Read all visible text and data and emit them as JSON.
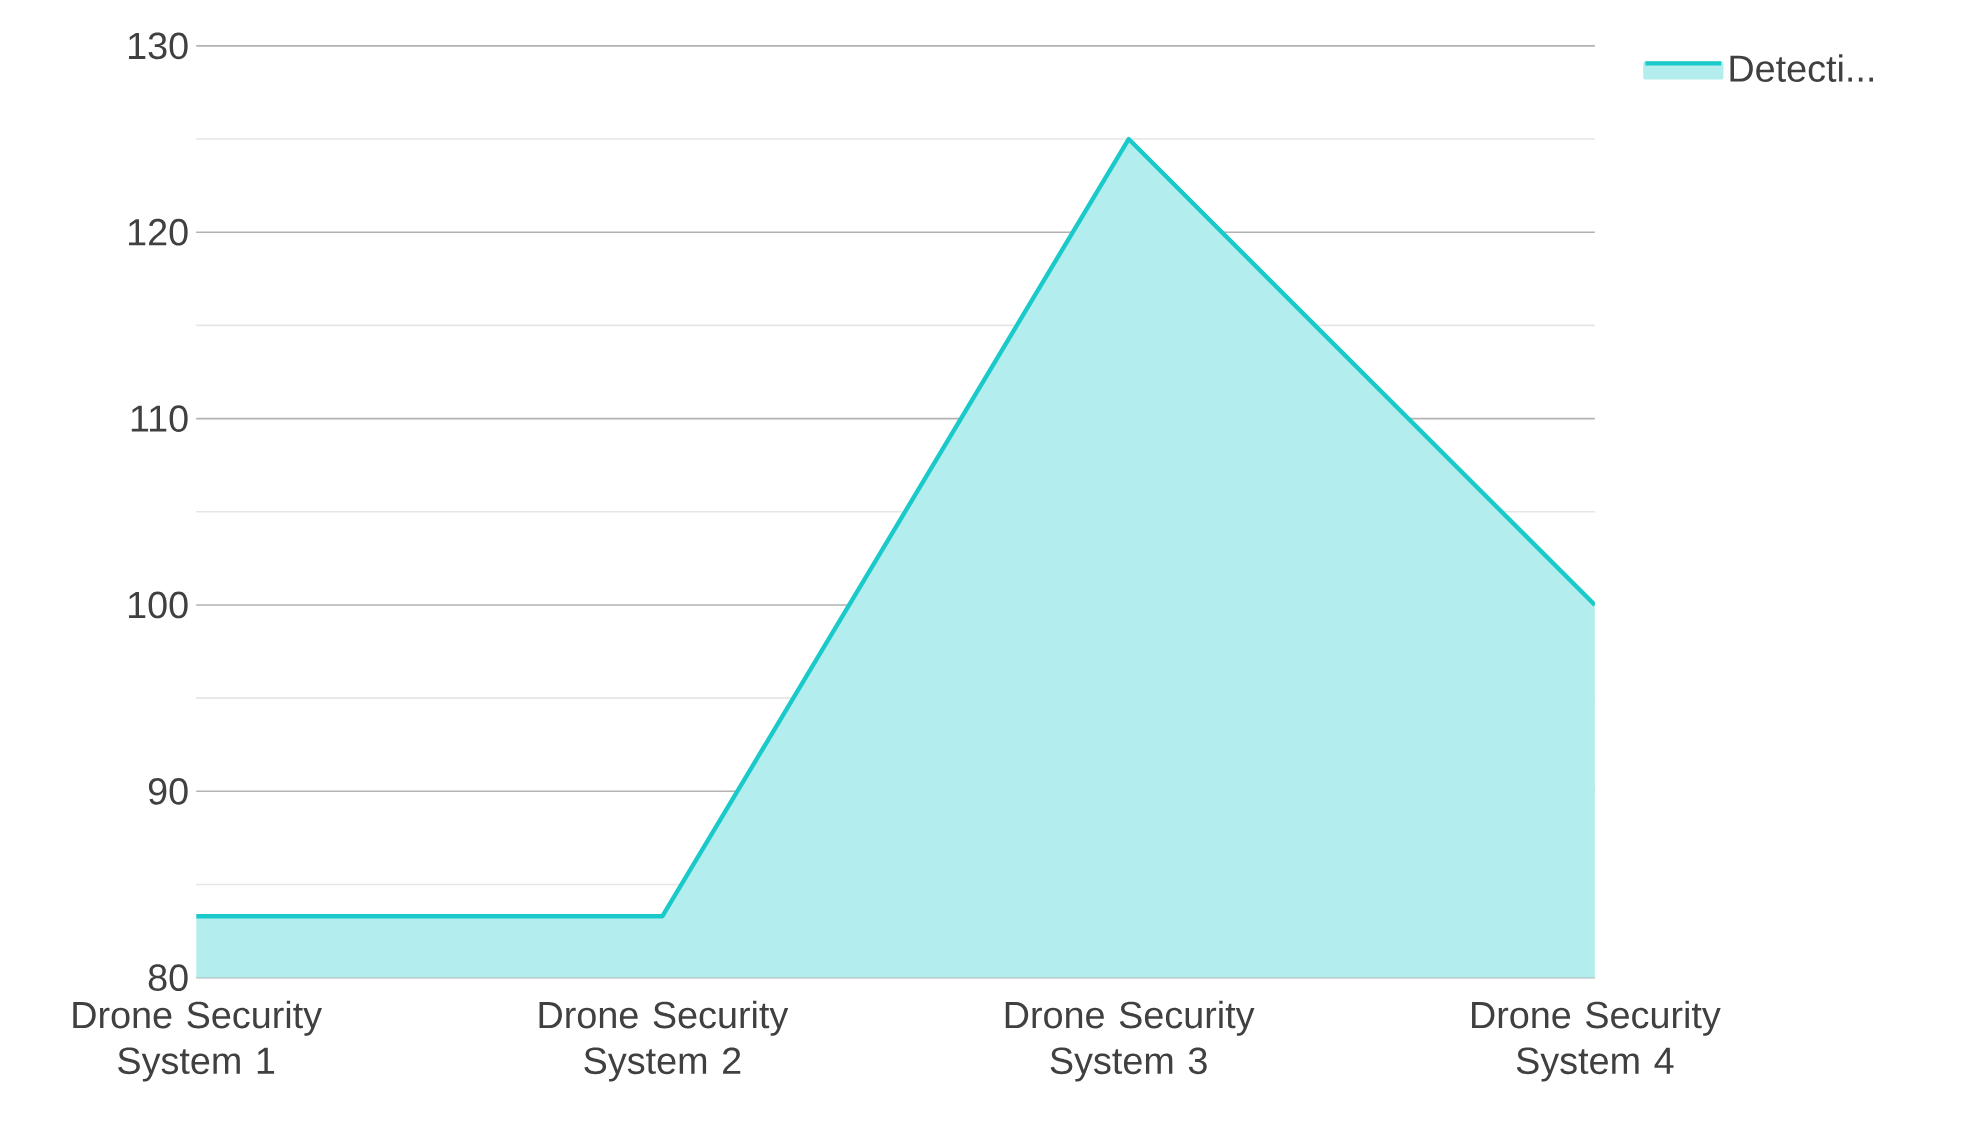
{
  "chart_data": {
    "type": "area",
    "categories": [
      "Drone Security System 1",
      "Drone Security System 2",
      "Drone Security System 3",
      "Drone Security System 4"
    ],
    "series": [
      {
        "name": "Detecti...",
        "color": "#1ac9c9",
        "values": [
          83.3,
          83.3,
          125,
          100
        ]
      }
    ],
    "ylim": [
      80,
      130
    ],
    "yticks": [
      80,
      90,
      100,
      110,
      120,
      130
    ],
    "grid": "y",
    "legend": "top right"
  }
}
